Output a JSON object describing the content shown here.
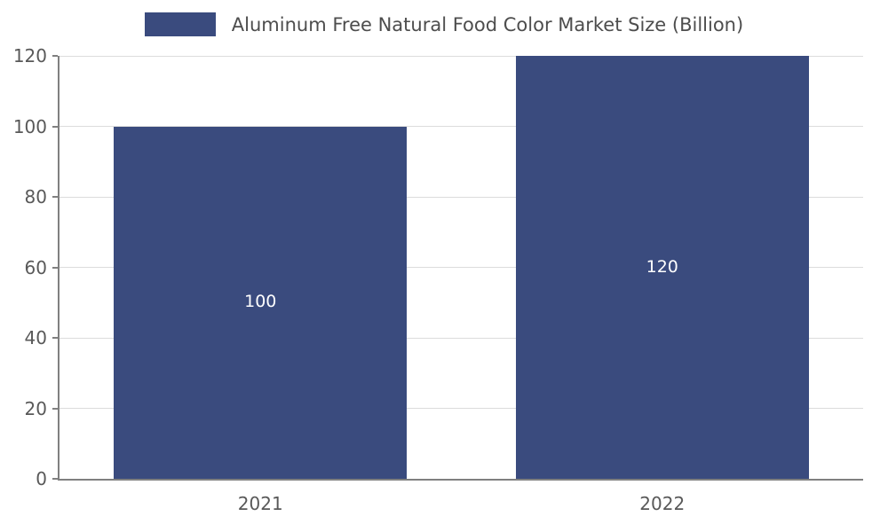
{
  "chart_data": {
    "type": "bar",
    "title": "Aluminum Free Natural Food Color Market Size (Billion)",
    "categories": [
      "2021",
      "2022"
    ],
    "values": [
      100,
      120
    ],
    "xlabel": "",
    "ylabel": "",
    "ylim": [
      0,
      120
    ],
    "yticks": [
      0,
      20,
      40,
      60,
      80,
      100,
      120
    ],
    "grid": true,
    "legend_position": "top-center",
    "bar_color": "#3a4b7e",
    "value_label_color": "#ffffff",
    "axis_color": "#808080",
    "grid_color": "#dcdcdc",
    "tick_label_color": "#595959"
  }
}
